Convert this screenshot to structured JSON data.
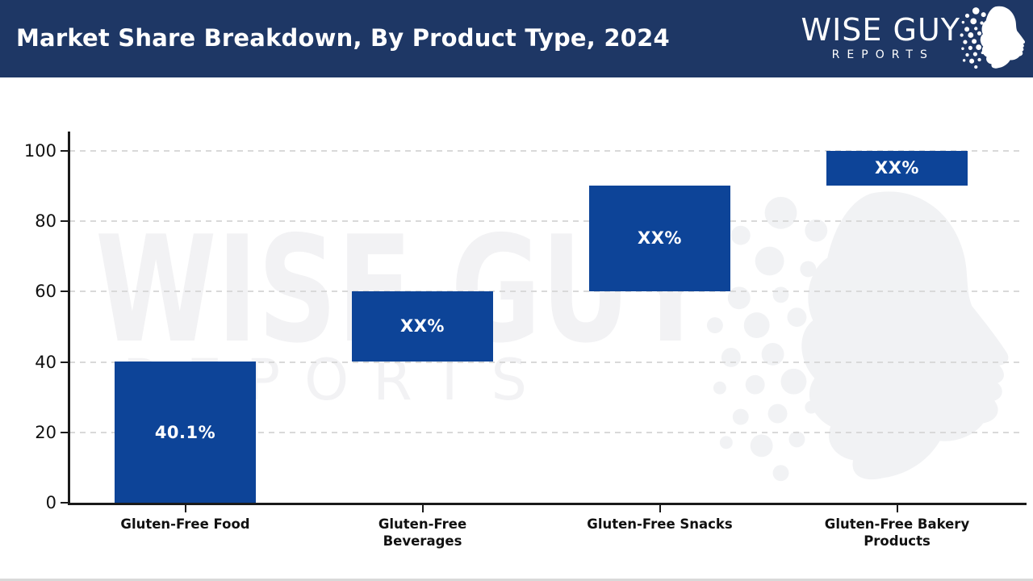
{
  "header": {
    "title": "Market Share Breakdown, By Product Type, 2024",
    "brand": {
      "line1": "WISE GUY",
      "line2": "REPORTS"
    }
  },
  "watermark": {
    "line1": "WISE GUY",
    "line2": "REPORTS"
  },
  "colors": {
    "header_bg": "#1e3765",
    "title_text": "#ffffff",
    "bar": "#0d4498",
    "bar_label": "#ffffff",
    "grid": "#d9d9d9",
    "axis": "#1a1a1a",
    "watermark": "#f2f2f4"
  },
  "chart_data": {
    "type": "bar",
    "variant": "stacked-waterfall",
    "title": "Market Share Breakdown, By Product Type, 2024",
    "categories": [
      "Gluten-Free Food",
      "Gluten-Free Beverages",
      "Gluten-Free Snacks",
      "Gluten-Free Bakery Products"
    ],
    "bars": [
      {
        "category": "Gluten-Free Food",
        "start": 0,
        "end": 40.1,
        "value": 40.1,
        "label": "40.1%",
        "tick_lines": [
          "Gluten-Free Food"
        ]
      },
      {
        "category": "Gluten-Free Beverages",
        "start": 40.1,
        "end": 60.2,
        "value": 20.1,
        "label": "XX%",
        "tick_lines": [
          "Gluten-Free",
          "Beverages"
        ]
      },
      {
        "category": "Gluten-Free Snacks",
        "start": 60.2,
        "end": 90.2,
        "value": 30.0,
        "label": "XX%",
        "tick_lines": [
          "Gluten-Free Snacks"
        ]
      },
      {
        "category": "Gluten-Free Bakery Products",
        "start": 90.2,
        "end": 100,
        "value": 9.8,
        "label": "XX%",
        "tick_lines": [
          "Gluten-Free Bakery",
          "Products"
        ]
      }
    ],
    "ylim": [
      0,
      100
    ],
    "yticks": [
      0,
      20,
      40,
      60,
      80,
      100
    ],
    "xlabel": "",
    "ylabel": "",
    "grid": "horizontal-dashed",
    "legend": "none",
    "bar_color": "#0d4498",
    "label_color": "#ffffff"
  }
}
